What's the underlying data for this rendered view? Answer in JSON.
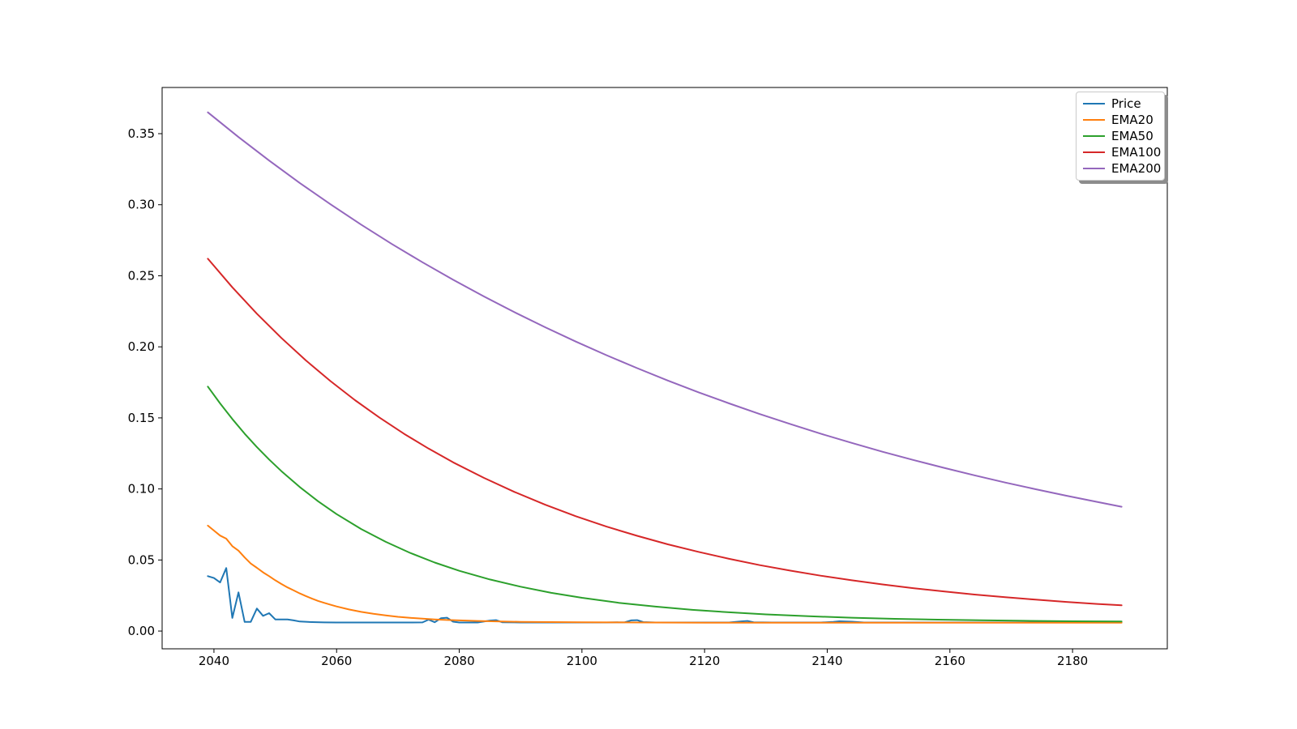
{
  "figure": {
    "background": "#ffffff",
    "frame_color": "#000000",
    "tick_color": "#000000"
  },
  "chart_data": {
    "type": "line",
    "title": "",
    "xlabel": "",
    "ylabel": "",
    "grid": false,
    "xlim": [
      2031.55,
      2195.45
    ],
    "ylim": [
      -0.0125,
      0.3825
    ],
    "x_ticks": [
      2040,
      2060,
      2080,
      2100,
      2120,
      2140,
      2160,
      2180
    ],
    "y_ticks": [
      0.0,
      0.05,
      0.1,
      0.15,
      0.2,
      0.25,
      0.3,
      0.35
    ],
    "legend": {
      "position": "upper right",
      "shadow": true
    },
    "series": [
      {
        "name": "Price",
        "color": "#1f77b4",
        "points": [
          [
            2039,
            0.0386
          ],
          [
            2040,
            0.0373
          ],
          [
            2041,
            0.0342
          ],
          [
            2042,
            0.0443
          ],
          [
            2043,
            0.0092
          ],
          [
            2044,
            0.0272
          ],
          [
            2045,
            0.0064
          ],
          [
            2046,
            0.0064
          ],
          [
            2047,
            0.0158
          ],
          [
            2048,
            0.0107
          ],
          [
            2049,
            0.0126
          ],
          [
            2050,
            0.0082
          ],
          [
            2052,
            0.0082
          ],
          [
            2053,
            0.0075
          ],
          [
            2054,
            0.0067
          ],
          [
            2056,
            0.0063
          ],
          [
            2058,
            0.0061
          ],
          [
            2060,
            0.006
          ],
          [
            2064,
            0.006
          ],
          [
            2068,
            0.006
          ],
          [
            2072,
            0.006
          ],
          [
            2074,
            0.0061
          ],
          [
            2075,
            0.008
          ],
          [
            2076,
            0.0062
          ],
          [
            2077,
            0.009
          ],
          [
            2078,
            0.0094
          ],
          [
            2079,
            0.0066
          ],
          [
            2080,
            0.006
          ],
          [
            2083,
            0.006
          ],
          [
            2085,
            0.0074
          ],
          [
            2086,
            0.0077
          ],
          [
            2087,
            0.0062
          ],
          [
            2090,
            0.006
          ],
          [
            2095,
            0.006
          ],
          [
            2100,
            0.006
          ],
          [
            2104,
            0.006
          ],
          [
            2107,
            0.0062
          ],
          [
            2108,
            0.0075
          ],
          [
            2109,
            0.0077
          ],
          [
            2110,
            0.0063
          ],
          [
            2112,
            0.006
          ],
          [
            2116,
            0.006
          ],
          [
            2120,
            0.006
          ],
          [
            2124,
            0.006
          ],
          [
            2126,
            0.0068
          ],
          [
            2127,
            0.0071
          ],
          [
            2128,
            0.0062
          ],
          [
            2131,
            0.006
          ],
          [
            2135,
            0.006
          ],
          [
            2139,
            0.006
          ],
          [
            2141,
            0.0065
          ],
          [
            2142,
            0.0069
          ],
          [
            2144,
            0.0066
          ],
          [
            2146,
            0.006
          ],
          [
            2150,
            0.006
          ],
          [
            2155,
            0.006
          ],
          [
            2160,
            0.006
          ],
          [
            2165,
            0.006
          ],
          [
            2170,
            0.006
          ],
          [
            2175,
            0.006
          ],
          [
            2180,
            0.006
          ],
          [
            2184,
            0.006
          ],
          [
            2188,
            0.006
          ]
        ]
      },
      {
        "name": "EMA20",
        "color": "#ff7f0e",
        "points": [
          [
            2039,
            0.0742
          ],
          [
            2040,
            0.0707
          ],
          [
            2041,
            0.0672
          ],
          [
            2042,
            0.065
          ],
          [
            2043,
            0.0597
          ],
          [
            2044,
            0.0566
          ],
          [
            2045,
            0.0518
          ],
          [
            2046,
            0.0475
          ],
          [
            2047,
            0.0445
          ],
          [
            2048,
            0.0413
          ],
          [
            2049,
            0.0386
          ],
          [
            2050,
            0.0357
          ],
          [
            2051,
            0.0331
          ],
          [
            2052,
            0.0307
          ],
          [
            2053,
            0.0286
          ],
          [
            2054,
            0.0265
          ],
          [
            2055,
            0.0246
          ],
          [
            2056,
            0.0228
          ],
          [
            2057,
            0.0212
          ],
          [
            2058,
            0.0198
          ],
          [
            2059,
            0.0185
          ],
          [
            2060,
            0.0173
          ],
          [
            2062,
            0.0152
          ],
          [
            2064,
            0.0135
          ],
          [
            2066,
            0.0121
          ],
          [
            2068,
            0.011
          ],
          [
            2070,
            0.01
          ],
          [
            2072,
            0.0093
          ],
          [
            2074,
            0.0087
          ],
          [
            2076,
            0.0082
          ],
          [
            2078,
            0.0078
          ],
          [
            2080,
            0.0075
          ],
          [
            2083,
            0.0071
          ],
          [
            2086,
            0.0068
          ],
          [
            2090,
            0.0065
          ],
          [
            2095,
            0.0063
          ],
          [
            2100,
            0.0062
          ],
          [
            2105,
            0.0061
          ],
          [
            2110,
            0.006
          ],
          [
            2120,
            0.0059
          ],
          [
            2130,
            0.0059
          ],
          [
            2140,
            0.0059
          ],
          [
            2150,
            0.0059
          ],
          [
            2160,
            0.0059
          ],
          [
            2170,
            0.0059
          ],
          [
            2180,
            0.0059
          ],
          [
            2188,
            0.0059
          ]
        ]
      },
      {
        "name": "EMA50",
        "color": "#2ca02c",
        "points": [
          [
            2039,
            0.172
          ],
          [
            2041,
            0.1602
          ],
          [
            2043,
            0.1492
          ],
          [
            2045,
            0.1389
          ],
          [
            2047,
            0.1295
          ],
          [
            2049,
            0.1207
          ],
          [
            2051,
            0.1125
          ],
          [
            2054,
            0.1013
          ],
          [
            2057,
            0.0913
          ],
          [
            2060,
            0.0823
          ],
          [
            2064,
            0.0718
          ],
          [
            2068,
            0.0628
          ],
          [
            2072,
            0.055
          ],
          [
            2076,
            0.0482
          ],
          [
            2080,
            0.0424
          ],
          [
            2085,
            0.0363
          ],
          [
            2090,
            0.0312
          ],
          [
            2095,
            0.0269
          ],
          [
            2100,
            0.0234
          ],
          [
            2106,
            0.0199
          ],
          [
            2112,
            0.0172
          ],
          [
            2118,
            0.0149
          ],
          [
            2124,
            0.0132
          ],
          [
            2130,
            0.0117
          ],
          [
            2137,
            0.0104
          ],
          [
            2144,
            0.0094
          ],
          [
            2151,
            0.0086
          ],
          [
            2158,
            0.008
          ],
          [
            2165,
            0.0076
          ],
          [
            2172,
            0.0072
          ],
          [
            2180,
            0.0069
          ],
          [
            2188,
            0.0067
          ]
        ]
      },
      {
        "name": "EMA100",
        "color": "#d62728",
        "points": [
          [
            2039,
            0.262
          ],
          [
            2043,
            0.2419
          ],
          [
            2047,
            0.2233
          ],
          [
            2051,
            0.2062
          ],
          [
            2055,
            0.1904
          ],
          [
            2059,
            0.1759
          ],
          [
            2063,
            0.1625
          ],
          [
            2067,
            0.1502
          ],
          [
            2071,
            0.1388
          ],
          [
            2075,
            0.1284
          ],
          [
            2079,
            0.1187
          ],
          [
            2084,
            0.1078
          ],
          [
            2089,
            0.0979
          ],
          [
            2094,
            0.0889
          ],
          [
            2099,
            0.0808
          ],
          [
            2104,
            0.0735
          ],
          [
            2109,
            0.067
          ],
          [
            2114,
            0.061
          ],
          [
            2119,
            0.0557
          ],
          [
            2124,
            0.0508
          ],
          [
            2129,
            0.0464
          ],
          [
            2134,
            0.0425
          ],
          [
            2139,
            0.0389
          ],
          [
            2144,
            0.0357
          ],
          [
            2149,
            0.0328
          ],
          [
            2154,
            0.0302
          ],
          [
            2159,
            0.0279
          ],
          [
            2164,
            0.0257
          ],
          [
            2169,
            0.0238
          ],
          [
            2174,
            0.0221
          ],
          [
            2179,
            0.0205
          ],
          [
            2184,
            0.0191
          ],
          [
            2188,
            0.0181
          ]
        ]
      },
      {
        "name": "EMA200",
        "color": "#9467bd",
        "points": [
          [
            2039,
            0.365
          ],
          [
            2044,
            0.3476
          ],
          [
            2049,
            0.3311
          ],
          [
            2054,
            0.3153
          ],
          [
            2059,
            0.3003
          ],
          [
            2064,
            0.286
          ],
          [
            2069,
            0.2724
          ],
          [
            2074,
            0.2595
          ],
          [
            2079,
            0.2472
          ],
          [
            2084,
            0.2355
          ],
          [
            2089,
            0.2244
          ],
          [
            2094,
            0.2138
          ],
          [
            2099,
            0.2037
          ],
          [
            2104,
            0.1941
          ],
          [
            2109,
            0.185
          ],
          [
            2114,
            0.1763
          ],
          [
            2119,
            0.168
          ],
          [
            2124,
            0.1602
          ],
          [
            2129,
            0.1527
          ],
          [
            2134,
            0.1456
          ],
          [
            2139,
            0.1388
          ],
          [
            2144,
            0.1324
          ],
          [
            2149,
            0.1262
          ],
          [
            2154,
            0.1204
          ],
          [
            2159,
            0.1149
          ],
          [
            2164,
            0.1096
          ],
          [
            2169,
            0.1045
          ],
          [
            2174,
            0.0998
          ],
          [
            2179,
            0.0952
          ],
          [
            2184,
            0.0909
          ],
          [
            2188,
            0.0875
          ]
        ]
      }
    ]
  }
}
